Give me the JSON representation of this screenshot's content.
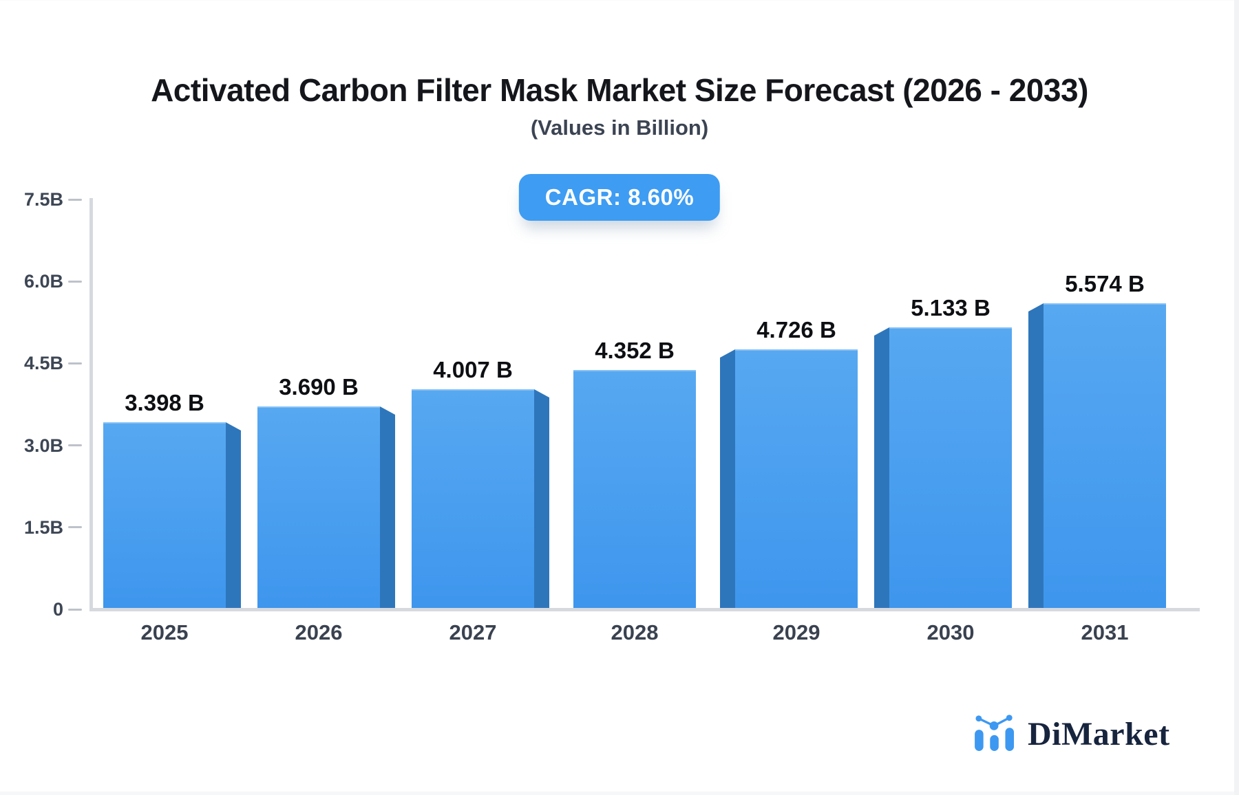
{
  "header": {
    "title": "Activated Carbon Filter Mask Market Size Forecast (2026 - 2033)",
    "subtitle": "(Values in Billion)",
    "cagr_label": "CAGR: 8.60%"
  },
  "chart_data": {
    "type": "bar",
    "categories": [
      "2025",
      "2026",
      "2027",
      "2028",
      "2029",
      "2030",
      "2031"
    ],
    "values": [
      3.398,
      3.69,
      4.007,
      4.352,
      4.726,
      5.133,
      5.574
    ],
    "value_labels": [
      "3.398 B",
      "3.690 B",
      "4.007 B",
      "4.352 B",
      "4.726 B",
      "5.133 B",
      "5.574 B"
    ],
    "title": "Activated Carbon Filter Mask Market Size Forecast (2026 - 2033)",
    "subtitle": "(Values in Billion)",
    "xlabel": "",
    "ylabel": "",
    "unit": "Billion",
    "ylim": [
      0,
      7.5
    ],
    "yticks": [
      {
        "value": 0,
        "label": "0"
      },
      {
        "value": 1.5,
        "label": "1.5B"
      },
      {
        "value": 3.0,
        "label": "3.0B"
      },
      {
        "value": 4.5,
        "label": "4.5B"
      },
      {
        "value": 6.0,
        "label": "6.0B"
      },
      {
        "value": 7.5,
        "label": "7.5B"
      }
    ],
    "grid": false,
    "legend": false,
    "style": "3d-extruded-bars-center-vanishing",
    "colors": {
      "bar_top": "#57a8f1",
      "bar_bottom": "#3e96ed",
      "bar_side": "#2e76bb",
      "axis_line": "#d6d9de",
      "tick_mark": "#bdc2ca",
      "tick_label": "#3d4654",
      "category_label": "#3a4250",
      "value_label": "#0d0f12"
    }
  },
  "badge_colors": {
    "background": "#3e9cf2",
    "text": "#ffffff"
  },
  "logo": {
    "text": "DiMarket",
    "icon": "mini-bar-chart-trend-icon",
    "icon_color": "#3d98f1",
    "text_color": "#17243e"
  }
}
